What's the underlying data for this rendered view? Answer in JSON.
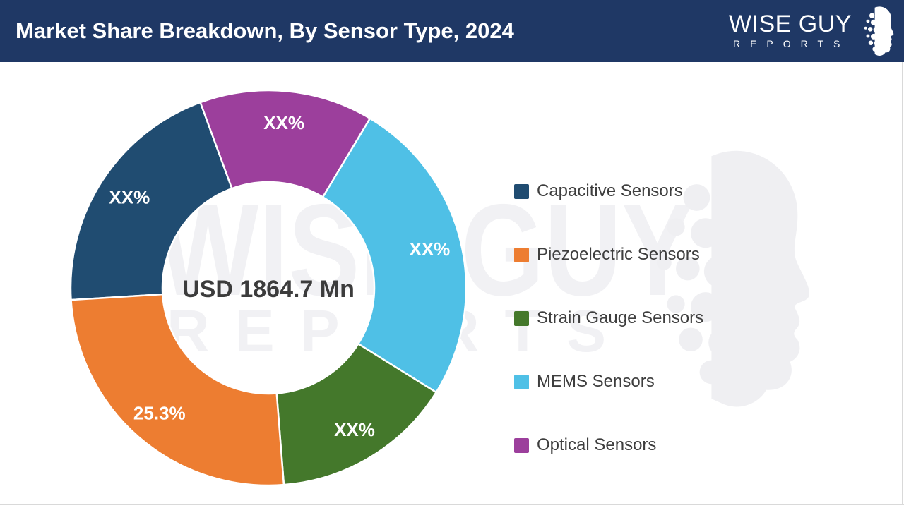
{
  "header": {
    "title": "Market Share Breakdown, By Sensor Type, 2024",
    "bg_color": "#1F3865",
    "logo": {
      "line1": "WISE GUY",
      "line2": "REPORTS"
    }
  },
  "watermark": {
    "line1": "WISE GUY",
    "line2": "REPORTS"
  },
  "chart_data": {
    "type": "pie",
    "subtype": "donut",
    "title": "Market Share Breakdown, By Sensor Type, 2024",
    "center_label": "USD 1864.7 Mn",
    "units": "percent of market share",
    "start_angle_deg_clockwise_from_top": 266.5,
    "direction": "clockwise",
    "slices": [
      {
        "name": "Capacitive Sensors",
        "value_label": "XX%",
        "share_pct": 20.4,
        "color": "#204C71"
      },
      {
        "name": "Optical Sensors",
        "value_label": "XX%",
        "share_pct": 14.2,
        "color": "#9C3F9C"
      },
      {
        "name": "MEMS Sensors",
        "value_label": "XX%",
        "share_pct": 25.3,
        "color": "#4FC0E6"
      },
      {
        "name": "Strain Gauge Sensors",
        "value_label": "XX%",
        "share_pct": 14.9,
        "color": "#44782B"
      },
      {
        "name": "Piezoelectric Sensors",
        "value_label": "25.3%",
        "share_pct": 25.3,
        "color": "#ED7D31"
      }
    ],
    "legend": {
      "position": "right",
      "items": [
        {
          "label": "Capacitive Sensors",
          "color": "#204C71"
        },
        {
          "label": "Piezoelectric Sensors",
          "color": "#ED7D31"
        },
        {
          "label": "Strain Gauge Sensors",
          "color": "#44782B"
        },
        {
          "label": "MEMS Sensors",
          "color": "#4FC0E6"
        },
        {
          "label": "Optical Sensors",
          "color": "#9C3F9C"
        }
      ]
    }
  }
}
